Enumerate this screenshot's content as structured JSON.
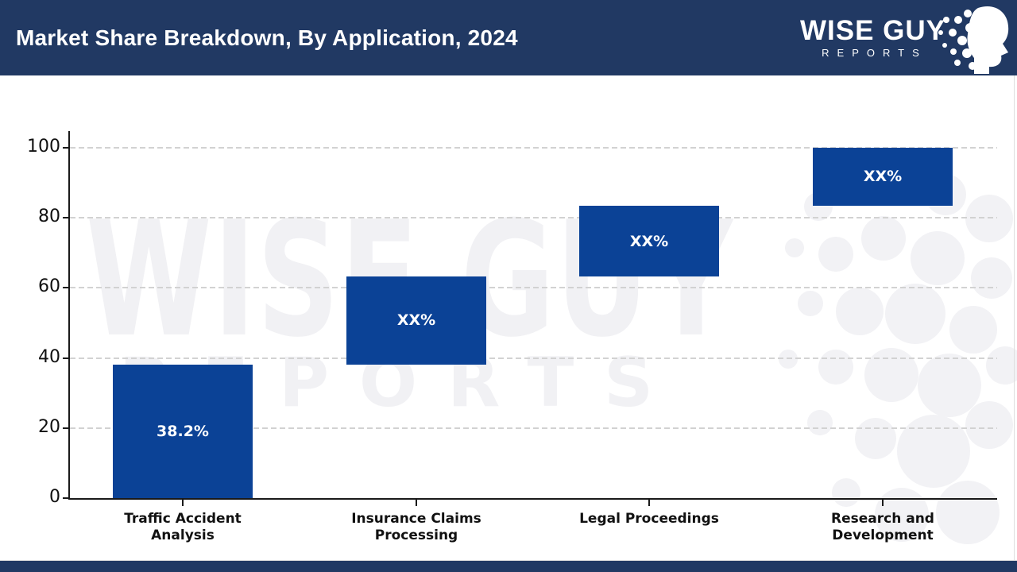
{
  "header": {
    "title": "Market Share Breakdown, By Application, 2024",
    "logo": {
      "line1": "WISE GUY",
      "line2": "REPORTS"
    }
  },
  "watermark": {
    "line1": "WISE GUY",
    "line2": "REPORTS"
  },
  "chart_data": {
    "type": "bar",
    "subtype": "waterfall-segments",
    "title": "Market Share Breakdown, By Application, 2024",
    "xlabel": "",
    "ylabel": "",
    "ylim": [
      0,
      100
    ],
    "yticks": [
      0,
      20,
      40,
      60,
      80,
      100
    ],
    "grid": "horizontal-dashed",
    "legend": "none",
    "categories": [
      "Traffic Accident\nAnalysis",
      "Insurance Claims\nProcessing",
      "Legal Proceedings",
      "Research and\nDevelopment"
    ],
    "bars": [
      {
        "category": "Traffic Accident Analysis",
        "start": 0,
        "end": 38.2,
        "label": "38.2%"
      },
      {
        "category": "Insurance Claims Processing",
        "start": 38.2,
        "end": 63.2,
        "label": "XX%"
      },
      {
        "category": "Legal Proceedings",
        "start": 63.2,
        "end": 83.5,
        "label": "XX%"
      },
      {
        "category": "Research and Development",
        "start": 83.5,
        "end": 100,
        "label": "XX%"
      }
    ]
  },
  "colors": {
    "header_bg": "#213963",
    "footer_bg": "#213963",
    "bar_fill": "#0B4296",
    "bar_label": "#FFFFFF",
    "axis": "#1A1A1A",
    "grid": "#D2D2D2",
    "watermark": "#F1F1F4"
  }
}
